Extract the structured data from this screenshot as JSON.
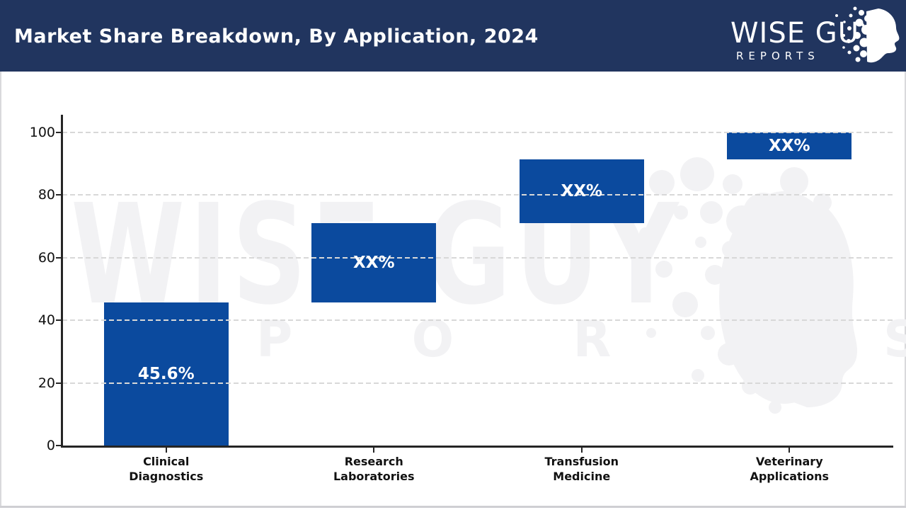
{
  "header": {
    "title": "Market Share Breakdown, By Application, 2024",
    "logo": {
      "primary": "WISE GUY",
      "secondary": "R E P O R T S"
    }
  },
  "watermark": {
    "primary": "WISE GUY",
    "secondary": "P O R T S"
  },
  "chart_data": {
    "type": "bar",
    "subtype": "waterfall-floating-segments",
    "title": "Market Share Breakdown, By Application, 2024",
    "xlabel": "",
    "ylabel": "",
    "ylim": [
      0,
      100
    ],
    "yticks": [
      0,
      20,
      40,
      60,
      80,
      100
    ],
    "grid": "dashed-horizontal",
    "legend": false,
    "bar_color": "#0b4a9e",
    "label_color": "#ffffff",
    "categories": [
      "Clinical Diagnostics",
      "Research Laboratories",
      "Transfusion Medicine",
      "Veterinary Applications"
    ],
    "category_lines": [
      [
        "Clinical",
        "Diagnostics"
      ],
      [
        "Research",
        "Laboratories"
      ],
      [
        "Transfusion",
        "Medicine"
      ],
      [
        "Veterinary",
        "Applications"
      ]
    ],
    "segments": [
      {
        "category": "Clinical Diagnostics",
        "start": 0,
        "end": 45.6,
        "label": "45.6%"
      },
      {
        "category": "Research Laboratories",
        "start": 45.6,
        "end": 71.0,
        "label": "XX%"
      },
      {
        "category": "Transfusion Medicine",
        "start": 71.0,
        "end": 91.4,
        "label": "XX%"
      },
      {
        "category": "Veterinary Applications",
        "start": 91.4,
        "end": 100,
        "label": "XX%"
      }
    ]
  },
  "colors": {
    "header_bg": "#21355f",
    "bar": "#0b4a9e",
    "gridline": "#d8d8d8",
    "spine": "#252525",
    "watermark": "#f2f2f4"
  }
}
